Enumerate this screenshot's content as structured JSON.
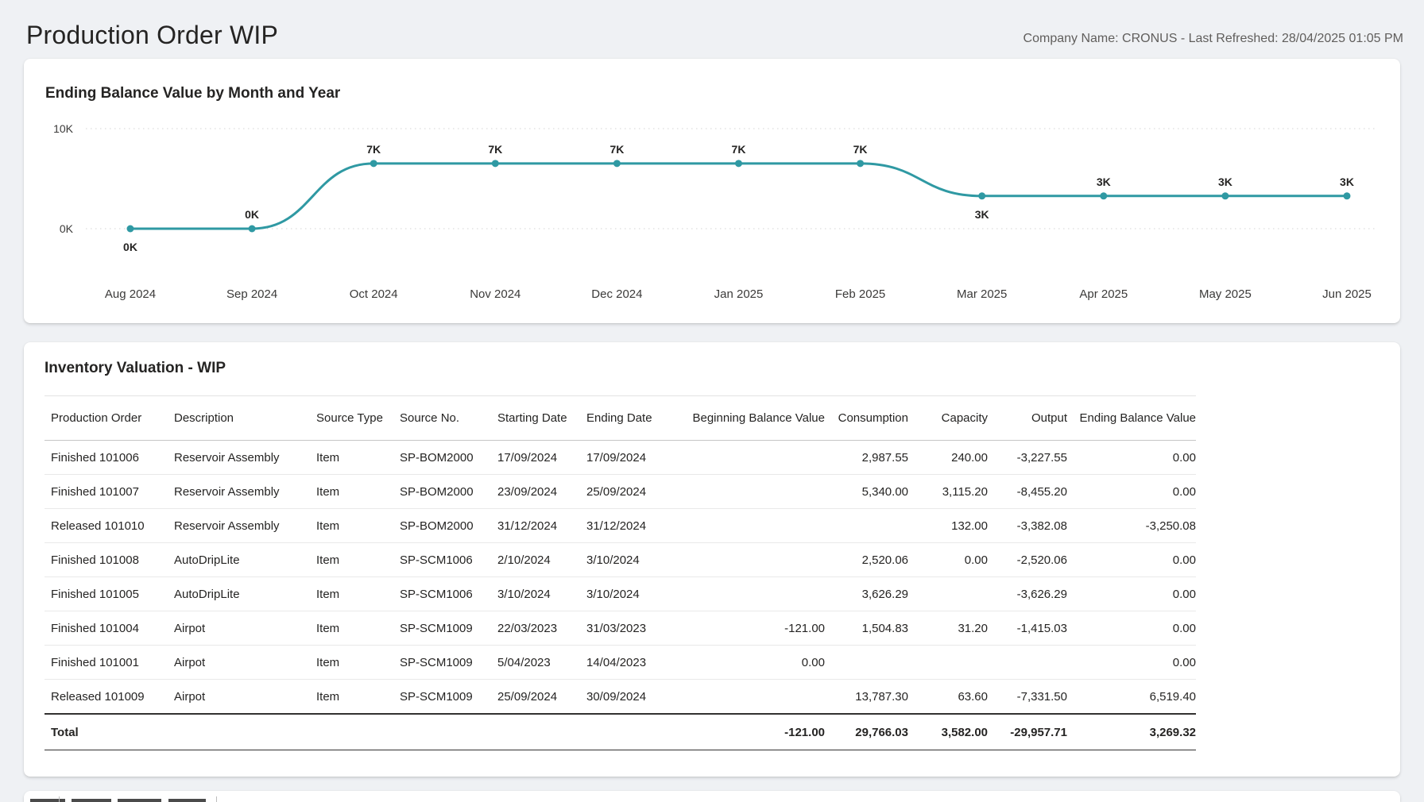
{
  "page": {
    "title": "Production Order WIP",
    "company_info": "Company Name: CRONUS - Last Refreshed: 28/04/2025 01:05 PM",
    "background_color": "#eff1f4"
  },
  "chart": {
    "title": "Ending Balance Value by Month and Year"
  },
  "chart_data": {
    "type": "line",
    "title": "Ending Balance Value by Month and Year",
    "x": [
      "Aug 2024",
      "Sep 2024",
      "Oct 2024",
      "Nov 2024",
      "Dec 2024",
      "Jan 2025",
      "Feb 2025",
      "Mar 2025",
      "Apr 2025",
      "May 2025",
      "Jun 2025"
    ],
    "values": [
      0,
      0,
      6519.4,
      6519.4,
      6519.4,
      6519.4,
      6519.4,
      3269.32,
      3269.32,
      3269.32,
      3269.32
    ],
    "point_labels": [
      "0K",
      "0K",
      "7K",
      "7K",
      "7K",
      "7K",
      "7K",
      "3K",
      "3K",
      "3K",
      "3K"
    ],
    "labels_below_indices": [
      0,
      7
    ],
    "ylim": [
      0,
      10000
    ],
    "y_ticks": [
      {
        "value": 0,
        "label": "0K"
      },
      {
        "value": 10000,
        "label": "10K"
      }
    ],
    "grid": "horizontal-dotted",
    "legend": "none",
    "line_color": "#2f99a3",
    "marker": "circle",
    "xlabel": "",
    "ylabel": ""
  },
  "table": {
    "title": "Inventory Valuation - WIP",
    "columns": [
      {
        "label": "Production Order",
        "align": "left"
      },
      {
        "label": "Description",
        "align": "left"
      },
      {
        "label": "Source Type",
        "align": "left"
      },
      {
        "label": "Source No.",
        "align": "left"
      },
      {
        "label": "Starting Date",
        "align": "left"
      },
      {
        "label": "Ending Date",
        "align": "left"
      },
      {
        "label": "Beginning Balance Value",
        "align": "right"
      },
      {
        "label": "Consumption",
        "align": "right"
      },
      {
        "label": "Capacity",
        "align": "right"
      },
      {
        "label": "Output",
        "align": "right"
      },
      {
        "label": "Ending Balance Value",
        "align": "right"
      }
    ],
    "rows": [
      [
        "Finished 101006",
        "Reservoir Assembly",
        "Item",
        "SP-BOM2000",
        "17/09/2024",
        "17/09/2024",
        "",
        "2,987.55",
        "240.00",
        "-3,227.55",
        "0.00"
      ],
      [
        "Finished 101007",
        "Reservoir Assembly",
        "Item",
        "SP-BOM2000",
        "23/09/2024",
        "25/09/2024",
        "",
        "5,340.00",
        "3,115.20",
        "-8,455.20",
        "0.00"
      ],
      [
        "Released 101010",
        "Reservoir Assembly",
        "Item",
        "SP-BOM2000",
        "31/12/2024",
        "31/12/2024",
        "",
        "",
        "132.00",
        "-3,382.08",
        "-3,250.08"
      ],
      [
        "Finished 101008",
        "AutoDripLite",
        "Item",
        "SP-SCM1006",
        "2/10/2024",
        "3/10/2024",
        "",
        "2,520.06",
        "0.00",
        "-2,520.06",
        "0.00"
      ],
      [
        "Finished 101005",
        "AutoDripLite",
        "Item",
        "SP-SCM1006",
        "3/10/2024",
        "3/10/2024",
        "",
        "3,626.29",
        "",
        "-3,626.29",
        "0.00"
      ],
      [
        "Finished 101004",
        "Airpot",
        "Item",
        "SP-SCM1009",
        "22/03/2023",
        "31/03/2023",
        "-121.00",
        "1,504.83",
        "31.20",
        "-1,415.03",
        "0.00"
      ],
      [
        "Finished 101001",
        "Airpot",
        "Item",
        "SP-SCM1009",
        "5/04/2023",
        "14/04/2023",
        "0.00",
        "",
        "",
        "",
        "0.00"
      ],
      [
        "Released 101009",
        "Airpot",
        "Item",
        "SP-SCM1009",
        "25/09/2024",
        "30/09/2024",
        "",
        "13,787.30",
        "63.60",
        "-7,331.50",
        "6,519.40"
      ]
    ],
    "total_row": [
      "Total",
      "",
      "",
      "",
      "",
      "",
      "-121.00",
      "29,766.03",
      "3,582.00",
      "-29,957.71",
      "3,269.32"
    ]
  }
}
